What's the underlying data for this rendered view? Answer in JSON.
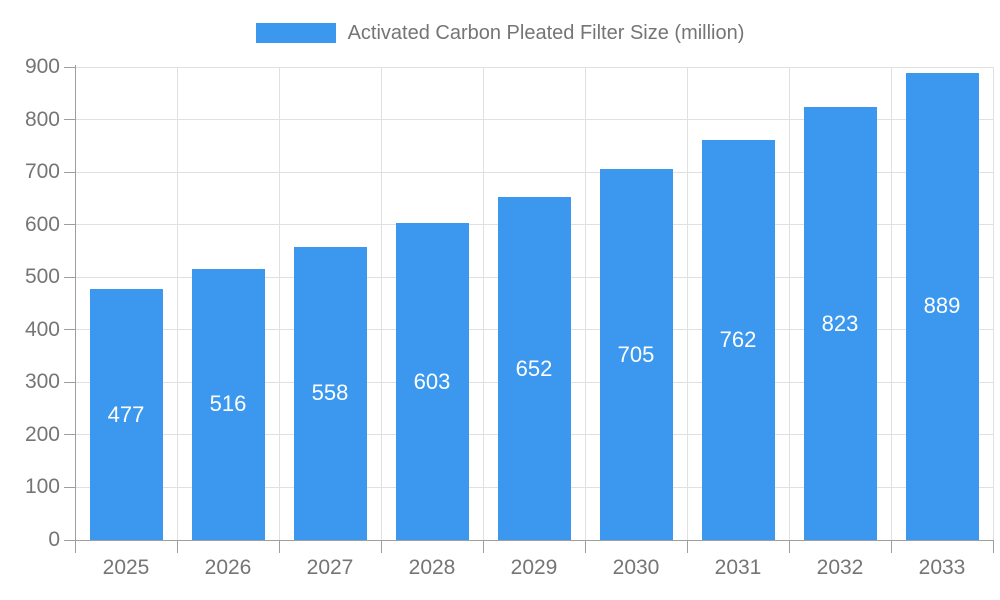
{
  "chart_data": {
    "type": "bar",
    "title": "Activated Carbon Pleated Filter Size (million)",
    "categories": [
      "2025",
      "2026",
      "2027",
      "2028",
      "2029",
      "2030",
      "2031",
      "2032",
      "2033"
    ],
    "values": [
      477,
      516,
      558,
      603,
      652,
      705,
      762,
      823,
      889
    ],
    "xlabel": "",
    "ylabel": "",
    "ylim": [
      0,
      900
    ],
    "yticks": [
      0,
      100,
      200,
      300,
      400,
      500,
      600,
      700,
      800,
      900
    ],
    "grid": true,
    "legend_position": "top-center",
    "colors": {
      "bar": "#3b98ee",
      "bar_value_text": "#ffffff",
      "axis_line": "#9e9e9e",
      "gridline": "#e0e0e0",
      "tick_text": "#757575",
      "legend_text": "#757575",
      "background": "#ffffff"
    }
  }
}
